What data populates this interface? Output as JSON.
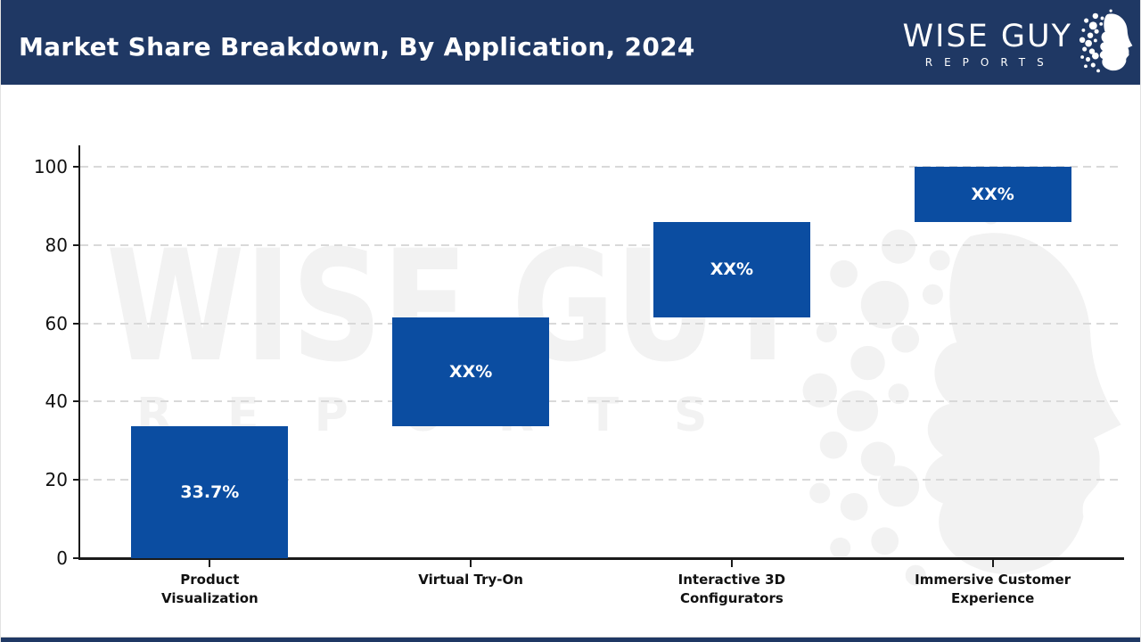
{
  "header": {
    "title": "Market Share Breakdown, By Application, 2024",
    "logo": {
      "name": "WISE GUY",
      "sub": "REPORTS"
    }
  },
  "watermark": {
    "line1": "WISE GUY",
    "line2": "REPORTS"
  },
  "chart_data": {
    "type": "bar",
    "subtype": "waterfall-segments",
    "title": "Market Share Breakdown, By Application, 2024",
    "categories": [
      "Product Visualization",
      "Virtual Try-On",
      "Interactive 3D Configurators",
      "Immersive Customer Experience"
    ],
    "category_label_lines": [
      [
        "Product",
        "Visualization"
      ],
      [
        "Virtual Try-On"
      ],
      [
        "Interactive 3D",
        "Configurators"
      ],
      [
        "Immersive Customer",
        "Experience"
      ]
    ],
    "bars": [
      {
        "label": "33.7%",
        "start": 0,
        "end": 33.7
      },
      {
        "label": "XX%",
        "start": 33.7,
        "end": 61.6
      },
      {
        "label": "XX%",
        "start": 61.6,
        "end": 85.9
      },
      {
        "label": "XX%",
        "start": 85.9,
        "end": 100
      }
    ],
    "yticks": [
      0,
      20,
      40,
      60,
      80,
      100
    ],
    "ylim": [
      0,
      105
    ],
    "xlabel": "",
    "ylabel": "",
    "grid": "horizontal-dashed",
    "legend": "none"
  },
  "colors": {
    "header_bg": "#1f3864",
    "bar": "#0b4da1",
    "bar_label": "#ffffff",
    "grid": "#d9d9d9",
    "axis": "#1a1a1a",
    "text": "#111111",
    "watermark": "#f2f2f2",
    "page_bg": "#ffffff"
  }
}
